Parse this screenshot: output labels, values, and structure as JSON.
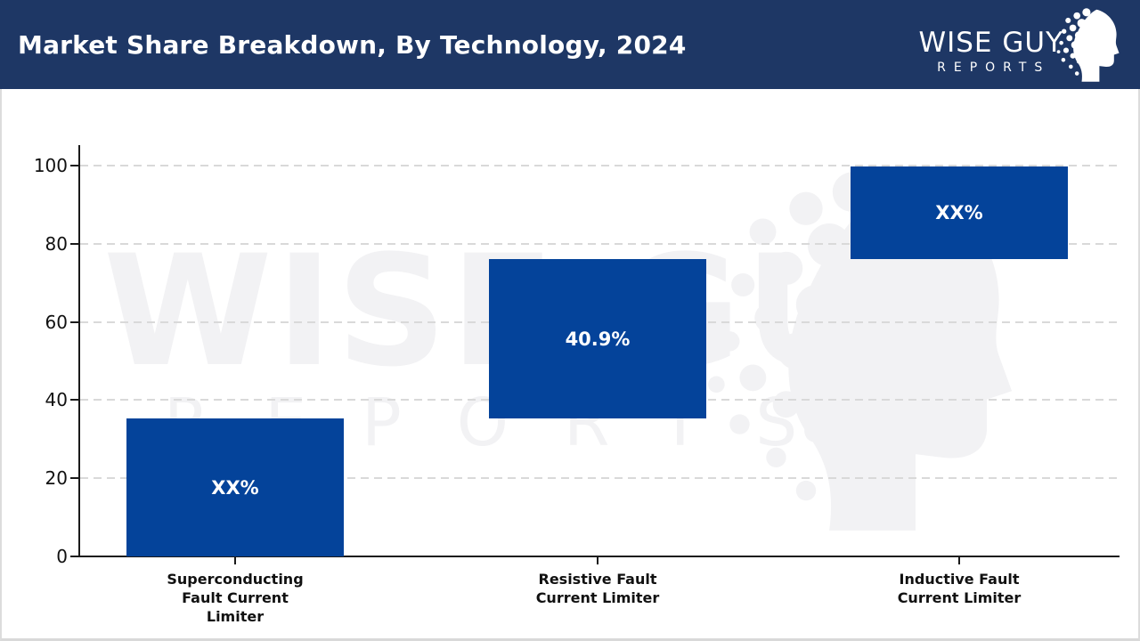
{
  "header": {
    "title": "Market Share Breakdown, By Technology, 2024",
    "logo": {
      "main": "WISE GUY",
      "sub": "REPORTS"
    }
  },
  "watermark": {
    "main": "WISE GUY",
    "sub": "REPORTS"
  },
  "colors": {
    "header_bg": "#1e3765",
    "bar": "#04439a",
    "bar_label": "#ffffff",
    "grid": "#d9d9d9",
    "axis": "#1a1a1a",
    "tick_text": "#111111",
    "watermark": "#f2f2f4"
  },
  "chart_data": {
    "type": "bar",
    "subtype": "floating-waterfall",
    "title": "Market Share Breakdown, By Technology, 2024",
    "categories": [
      [
        "Superconducting",
        "Fault Current",
        "Limiter"
      ],
      [
        "Resistive Fault",
        "Current Limiter"
      ],
      [
        "Inductive Fault",
        "Current Limiter"
      ]
    ],
    "bars": [
      {
        "start": 0,
        "end": 35.2,
        "height": 35.2,
        "label": "XX%"
      },
      {
        "start": 35.2,
        "end": 76.1,
        "height": 40.9,
        "label": "40.9%"
      },
      {
        "start": 76.1,
        "end": 99.8,
        "height": 23.7,
        "label": "XX%"
      }
    ],
    "yticks": [
      0,
      20,
      40,
      60,
      80,
      100
    ],
    "ylim": [
      0,
      105
    ],
    "xlabel": "",
    "ylabel": "",
    "grid": "dashed-horizontal",
    "legend": "none"
  }
}
